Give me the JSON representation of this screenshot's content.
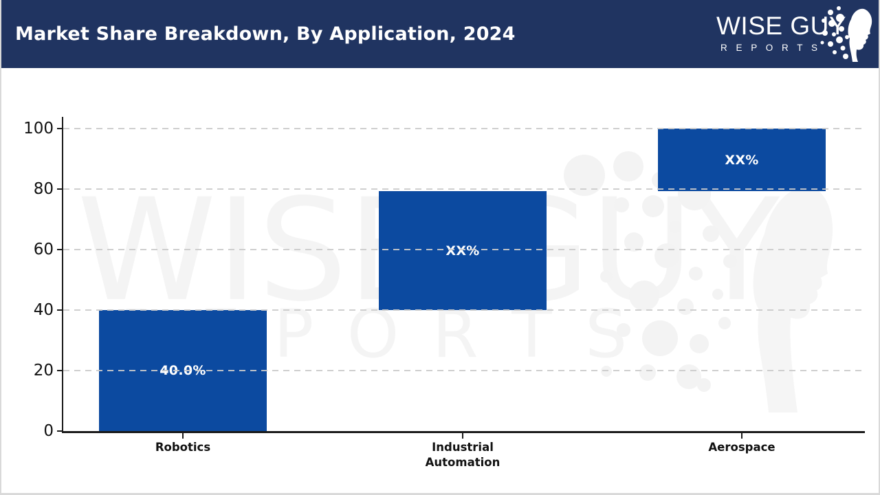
{
  "page": {
    "background": "#ffffff",
    "border_color": "#d9d9d9"
  },
  "header": {
    "bg_color": "#203461",
    "title": "Market Share Breakdown, By Application, 2024",
    "logo": {
      "name": "WISE GUY",
      "sub": "R E P O R T S"
    }
  },
  "watermark": {
    "line1": "WISE GUY",
    "line2": "R E P O R T S"
  },
  "chart_data": {
    "type": "bar",
    "subtype": "stacked-waterfall-segments",
    "title": "Market Share Breakdown, By Application, 2024",
    "categories": [
      "Robotics",
      "Industrial\nAutomation",
      "Aerospace"
    ],
    "segments": [
      {
        "category": "Robotics",
        "start": 0,
        "end": 40,
        "label": "40.0%"
      },
      {
        "category": "Industrial Automation",
        "start": 40,
        "end": 79.3,
        "label": "XX%"
      },
      {
        "category": "Aerospace",
        "start": 79.3,
        "end": 100,
        "label": "XX%"
      }
    ],
    "ylim": [
      0,
      100
    ],
    "yticks": [
      0,
      20,
      40,
      60,
      80,
      100
    ],
    "xlabel": "",
    "ylabel": "",
    "legend": "none",
    "grid": "horizontal-dashed",
    "grid_color": "#cbcbcb",
    "bar_color": "#0c4aa0",
    "bar_label_color": "#ffffff",
    "axis_color": "#1a1a1a",
    "tick_label_color": "#111111"
  }
}
